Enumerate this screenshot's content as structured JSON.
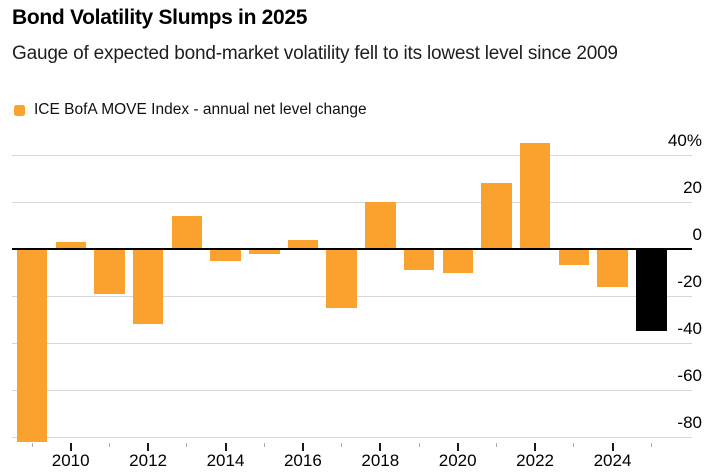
{
  "header": {
    "title": "Bond Volatility Slumps in 2025",
    "subtitle": "Gauge of expected bond-market volatility fell to its lowest level since 2009"
  },
  "legend": {
    "label": "ICE BofA MOVE Index - annual net level change",
    "marker_color": "#FAA12E"
  },
  "colors": {
    "bar": "#FAA12E",
    "highlight": "#000000",
    "grid": "#D8D8D8",
    "zero_line": "#000000",
    "background": "#FFFFFF",
    "major_tick": "#1A1A1A",
    "minor_tick": "#ABABAB"
  },
  "chart_data": {
    "type": "bar",
    "title": "Bond Volatility Slumps in 2025",
    "subtitle": "Gauge of expected bond-market volatility fell to its lowest level since 2009",
    "series_name": "ICE BofA MOVE Index - annual net level change",
    "unit": "%",
    "categories": [
      "2009",
      "2010",
      "2011",
      "2012",
      "2013",
      "2014",
      "2015",
      "2016",
      "2017",
      "2018",
      "2019",
      "2020",
      "2021",
      "2022",
      "2023",
      "2024",
      "2025"
    ],
    "values": [
      -82,
      3,
      -19,
      -32,
      14,
      -5,
      -2,
      4,
      -25,
      20,
      -9,
      -10,
      28,
      45,
      -7,
      -16,
      -35
    ],
    "highlight_category": "2025",
    "bar_color": "#FAA12E",
    "highlight_color": "#000000",
    "y_ticks": [
      {
        "value": 40,
        "label": "40%"
      },
      {
        "value": 20,
        "label": "20"
      },
      {
        "value": 0,
        "label": "0"
      },
      {
        "value": -20,
        "label": "-20"
      },
      {
        "value": -40,
        "label": "-40"
      },
      {
        "value": -60,
        "label": "-60"
      },
      {
        "value": -80,
        "label": "-80"
      }
    ],
    "x_labeled_categories": [
      "2010",
      "2012",
      "2014",
      "2016",
      "2018",
      "2020",
      "2022",
      "2024"
    ],
    "ylim": [
      -83,
      46
    ],
    "grid": true,
    "legend_position": "top-left",
    "zero_line": true
  }
}
